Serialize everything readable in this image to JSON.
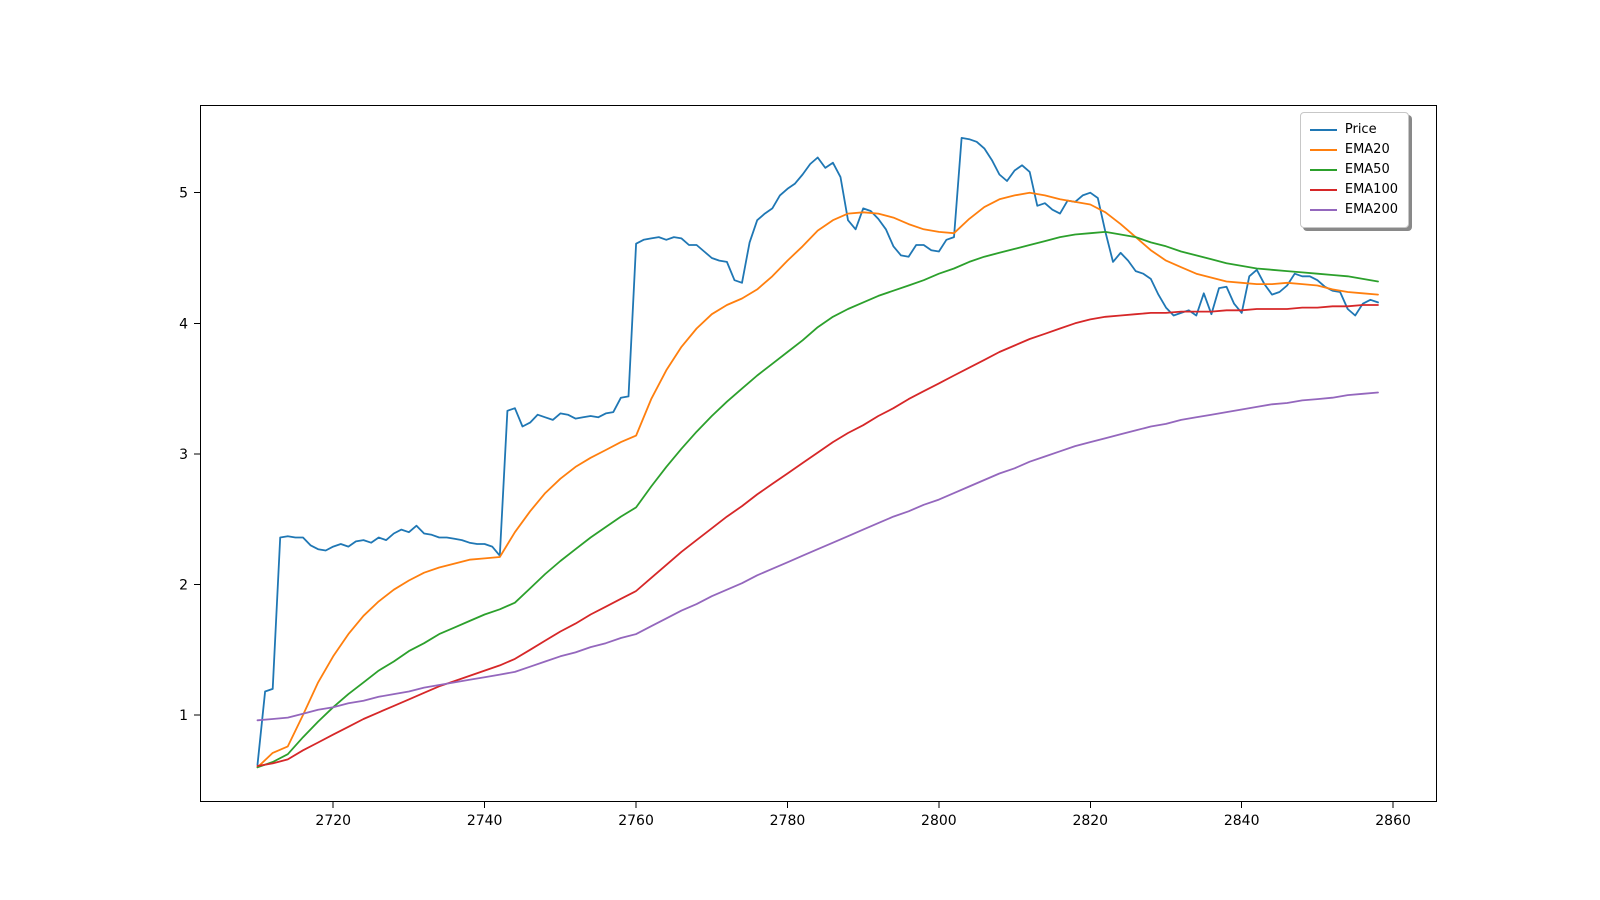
{
  "chart_data": {
    "type": "line",
    "title": "",
    "xlabel": "",
    "ylabel": "",
    "grid": false,
    "xlim": [
      2702.4,
      2865.8
    ],
    "ylim": [
      0.334,
      5.672
    ],
    "x_tick_values": [
      2720,
      2740,
      2760,
      2780,
      2800,
      2820,
      2840,
      2860
    ],
    "x_tick_labels": [
      "2720",
      "2740",
      "2760",
      "2780",
      "2800",
      "2820",
      "2840",
      "2860"
    ],
    "y_tick_values": [
      1,
      2,
      3,
      4,
      5
    ],
    "y_tick_labels": [
      "1",
      "2",
      "3",
      "4",
      "5"
    ],
    "legend": {
      "position": "upper-right",
      "shadow": true
    },
    "x_start": 2710,
    "series": [
      {
        "name": "Price",
        "color": "#1f77b4",
        "x_step": 1,
        "values": [
          0.62,
          1.18,
          1.2,
          2.36,
          2.37,
          2.36,
          2.36,
          2.3,
          2.27,
          2.26,
          2.29,
          2.31,
          2.29,
          2.33,
          2.34,
          2.32,
          2.36,
          2.34,
          2.39,
          2.42,
          2.4,
          2.45,
          2.39,
          2.38,
          2.36,
          2.36,
          2.35,
          2.34,
          2.32,
          2.31,
          2.31,
          2.29,
          2.22,
          3.33,
          3.35,
          3.21,
          3.24,
          3.3,
          3.28,
          3.26,
          3.31,
          3.3,
          3.27,
          3.28,
          3.29,
          3.28,
          3.31,
          3.32,
          3.43,
          3.44,
          4.61,
          4.64,
          4.65,
          4.66,
          4.64,
          4.66,
          4.65,
          4.6,
          4.6,
          4.55,
          4.5,
          4.48,
          4.47,
          4.33,
          4.31,
          4.62,
          4.79,
          4.84,
          4.88,
          4.98,
          5.03,
          5.07,
          5.14,
          5.22,
          5.27,
          5.19,
          5.23,
          5.12,
          4.79,
          4.72,
          4.88,
          4.86,
          4.8,
          4.72,
          4.59,
          4.52,
          4.51,
          4.6,
          4.6,
          4.56,
          4.55,
          4.64,
          4.66,
          5.42,
          5.41,
          5.39,
          5.34,
          5.25,
          5.14,
          5.09,
          5.17,
          5.21,
          5.16,
          4.9,
          4.92,
          4.87,
          4.84,
          4.94,
          4.93,
          4.98,
          5.0,
          4.96,
          4.7,
          4.47,
          4.54,
          4.48,
          4.4,
          4.38,
          4.34,
          4.22,
          4.12,
          4.06,
          4.08,
          4.1,
          4.06,
          4.23,
          4.07,
          4.27,
          4.28,
          4.15,
          4.08,
          4.36,
          4.41,
          4.3,
          4.22,
          4.24,
          4.29,
          4.38,
          4.36,
          4.36,
          4.33,
          4.28,
          4.25,
          4.24,
          4.11,
          4.06,
          4.15,
          4.18,
          4.16
        ]
      },
      {
        "name": "EMA20",
        "color": "#ff7f0e",
        "x_step": 2,
        "values": [
          0.6,
          0.71,
          0.76,
          1.0,
          1.25,
          1.45,
          1.62,
          1.76,
          1.87,
          1.96,
          2.03,
          2.09,
          2.13,
          2.16,
          2.19,
          2.2,
          2.21,
          2.4,
          2.56,
          2.7,
          2.81,
          2.9,
          2.97,
          3.03,
          3.09,
          3.14,
          3.42,
          3.64,
          3.82,
          3.96,
          4.07,
          4.14,
          4.19,
          4.26,
          4.36,
          4.48,
          4.59,
          4.71,
          4.79,
          4.84,
          4.85,
          4.84,
          4.81,
          4.76,
          4.72,
          4.7,
          4.69,
          4.8,
          4.89,
          4.95,
          4.98,
          5.0,
          4.98,
          4.95,
          4.93,
          4.91,
          4.85,
          4.76,
          4.66,
          4.56,
          4.48,
          4.43,
          4.38,
          4.35,
          4.32,
          4.31,
          4.3,
          4.3,
          4.31,
          4.3,
          4.29,
          4.26,
          4.24,
          4.23,
          4.22
        ]
      },
      {
        "name": "EMA50",
        "color": "#2ca02c",
        "x_step": 2,
        "values": [
          0.6,
          0.64,
          0.7,
          0.83,
          0.95,
          1.06,
          1.16,
          1.25,
          1.34,
          1.41,
          1.49,
          1.55,
          1.62,
          1.67,
          1.72,
          1.77,
          1.81,
          1.86,
          1.97,
          2.08,
          2.18,
          2.27,
          2.36,
          2.44,
          2.52,
          2.59,
          2.75,
          2.9,
          3.04,
          3.17,
          3.29,
          3.4,
          3.5,
          3.6,
          3.69,
          3.78,
          3.87,
          3.97,
          4.05,
          4.11,
          4.16,
          4.21,
          4.25,
          4.29,
          4.33,
          4.38,
          4.42,
          4.47,
          4.51,
          4.54,
          4.57,
          4.6,
          4.63,
          4.66,
          4.68,
          4.69,
          4.7,
          4.68,
          4.66,
          4.62,
          4.59,
          4.55,
          4.52,
          4.49,
          4.46,
          4.44,
          4.42,
          4.41,
          4.4,
          4.39,
          4.38,
          4.37,
          4.36,
          4.34,
          4.32
        ]
      },
      {
        "name": "EMA100",
        "color": "#d62728",
        "x_step": 2,
        "values": [
          0.61,
          0.63,
          0.66,
          0.73,
          0.79,
          0.85,
          0.91,
          0.97,
          1.02,
          1.07,
          1.12,
          1.17,
          1.22,
          1.26,
          1.3,
          1.34,
          1.38,
          1.43,
          1.5,
          1.57,
          1.64,
          1.7,
          1.77,
          1.83,
          1.89,
          1.95,
          2.05,
          2.15,
          2.25,
          2.34,
          2.43,
          2.52,
          2.6,
          2.69,
          2.77,
          2.85,
          2.93,
          3.01,
          3.09,
          3.16,
          3.22,
          3.29,
          3.35,
          3.42,
          3.48,
          3.54,
          3.6,
          3.66,
          3.72,
          3.78,
          3.83,
          3.88,
          3.92,
          3.96,
          4.0,
          4.03,
          4.05,
          4.06,
          4.07,
          4.08,
          4.08,
          4.09,
          4.09,
          4.09,
          4.1,
          4.1,
          4.11,
          4.11,
          4.11,
          4.12,
          4.12,
          4.13,
          4.13,
          4.14,
          4.14
        ]
      },
      {
        "name": "EMA200",
        "color": "#9467bd",
        "x_step": 2,
        "values": [
          0.96,
          0.97,
          0.98,
          1.01,
          1.04,
          1.06,
          1.09,
          1.11,
          1.14,
          1.16,
          1.18,
          1.21,
          1.23,
          1.25,
          1.27,
          1.29,
          1.31,
          1.33,
          1.37,
          1.41,
          1.45,
          1.48,
          1.52,
          1.55,
          1.59,
          1.62,
          1.68,
          1.74,
          1.8,
          1.85,
          1.91,
          1.96,
          2.01,
          2.07,
          2.12,
          2.17,
          2.22,
          2.27,
          2.32,
          2.37,
          2.42,
          2.47,
          2.52,
          2.56,
          2.61,
          2.65,
          2.7,
          2.75,
          2.8,
          2.85,
          2.89,
          2.94,
          2.98,
          3.02,
          3.06,
          3.09,
          3.12,
          3.15,
          3.18,
          3.21,
          3.23,
          3.26,
          3.28,
          3.3,
          3.32,
          3.34,
          3.36,
          3.38,
          3.39,
          3.41,
          3.42,
          3.43,
          3.45,
          3.46,
          3.47
        ]
      }
    ]
  },
  "figure": {
    "background": "#ffffff",
    "spine_color": "#000000",
    "tick_color": "#000000"
  }
}
